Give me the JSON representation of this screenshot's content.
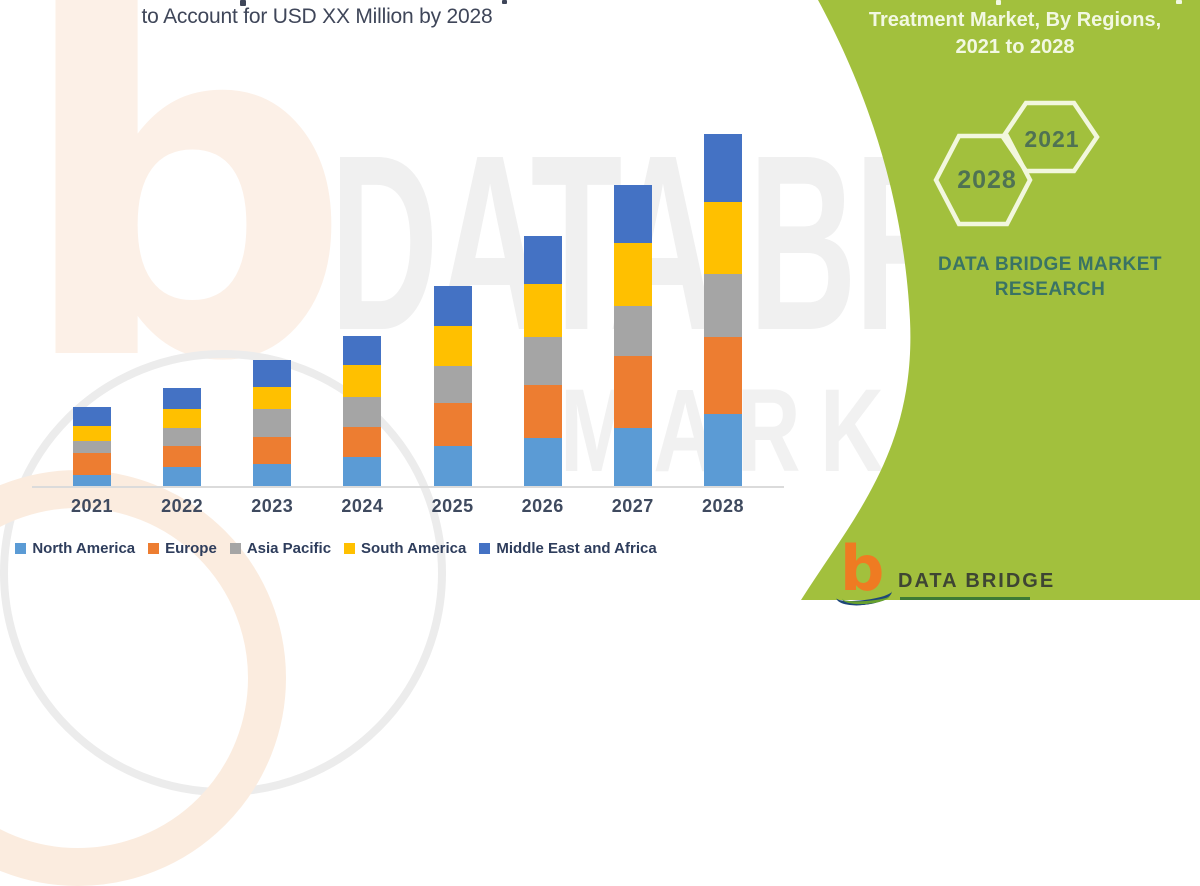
{
  "title": {
    "visible_line": "to Account for USD XX Million by 2028",
    "note": "first title line cut off at top edge of screenshot"
  },
  "watermark": {
    "b_glyph": "b",
    "line1": "DATA BRIDGE",
    "line2": "MARKET RESEARCH"
  },
  "side_panel": {
    "bg_color": "#A2C03D",
    "heading_line1": "Treatment Market, By Regions,",
    "heading_line2": "2021 to 2028",
    "hex_small_year": "2021",
    "hex_large_year": "2028",
    "hex_stroke_color": "#F2F7DE",
    "org_line1": "DATA BRIDGE MARKET",
    "org_line2": "RESEARCH"
  },
  "logo": {
    "b_glyph": "b",
    "text": "DATA BRIDGE",
    "b_color": "#EF7B22"
  },
  "chart_data": {
    "type": "bar",
    "stacked": true,
    "title": "to Account for USD XX Million by 2028 (first line cropped)",
    "xlabel": "",
    "ylabel": "",
    "y_axis_visible": false,
    "gridlines": false,
    "legend_position": "bottom",
    "value_units": "relative height units (actual figures shown as USD XX Million)",
    "categories": [
      "2021",
      "2022",
      "2023",
      "2024",
      "2025",
      "2026",
      "2027",
      "2028"
    ],
    "series": [
      {
        "name": "North America",
        "color": "#5B9BD5",
        "values": [
          11,
          19,
          22,
          29,
          40,
          48,
          58,
          72
        ]
      },
      {
        "name": "Europe",
        "color": "#ED7D31",
        "values": [
          22,
          21,
          27,
          30,
          43,
          53,
          72,
          77
        ]
      },
      {
        "name": "Asia Pacific",
        "color": "#A5A5A5",
        "values": [
          12,
          18,
          28,
          30,
          37,
          48,
          50,
          63
        ]
      },
      {
        "name": "South America",
        "color": "#FFC000",
        "values": [
          15,
          19,
          22,
          32,
          40,
          53,
          63,
          72
        ]
      },
      {
        "name": "Middle East and Africa",
        "color": "#4472C4",
        "values": [
          19,
          21,
          27,
          29,
          40,
          48,
          58,
          68
        ]
      }
    ],
    "totals": [
      79,
      98,
      126,
      150,
      200,
      250,
      301,
      352
    ]
  }
}
